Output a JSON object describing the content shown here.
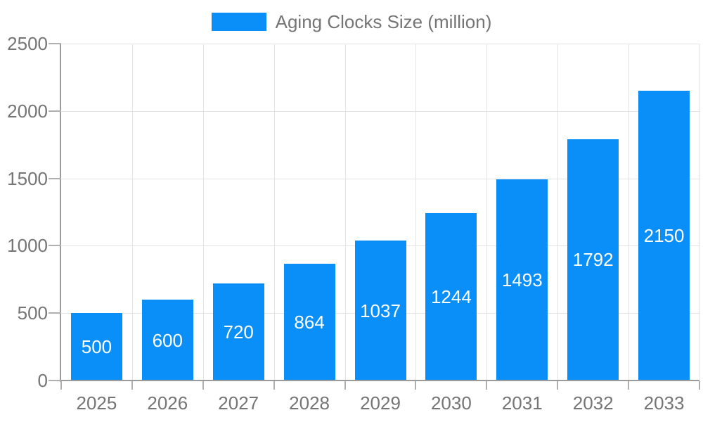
{
  "chart_data": {
    "type": "bar",
    "title": "Aging Clocks Size (million)",
    "legend": {
      "label": "Aging Clocks Size (million)",
      "position": "top"
    },
    "categories": [
      "2025",
      "2026",
      "2027",
      "2028",
      "2029",
      "2030",
      "2031",
      "2032",
      "2033"
    ],
    "values": [
      500,
      600,
      720,
      864,
      1037,
      1244,
      1493,
      1792,
      2150
    ],
    "xlabel": "",
    "ylabel": "",
    "ylim": [
      0,
      2500
    ],
    "yticks": [
      0,
      500,
      1000,
      1500,
      2000,
      2500
    ],
    "grid": true,
    "bar_label_position": "center-inside",
    "colors": {
      "bar": "#0a8ef8",
      "bar_label": "#ffffff",
      "gridline": "#e4e4e4",
      "axis_line": "#9b9b9b",
      "tick": "#b0b0b0",
      "text": "#757575",
      "background": "#ffffff"
    }
  }
}
